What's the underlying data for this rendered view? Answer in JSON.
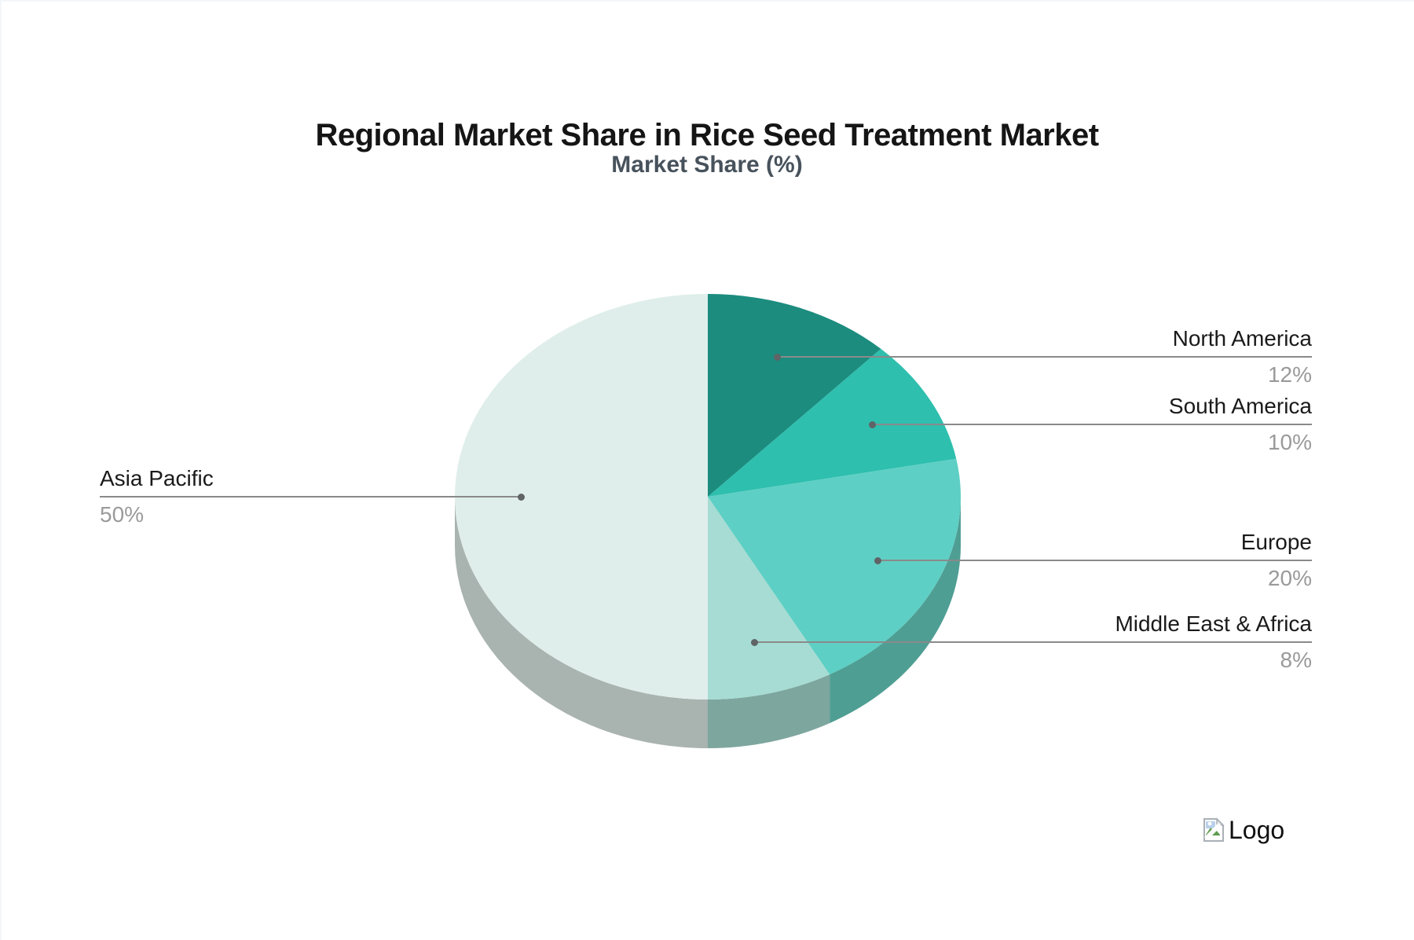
{
  "page": {
    "background": "#ffffff"
  },
  "header": {
    "title": "Regional Market Share in Rice Seed Treatment Market",
    "subtitle": "Market Share (%)"
  },
  "chart_data": {
    "type": "pie",
    "style": "3d-extruded",
    "title": "Regional Market Share in Rice Seed Treatment Market",
    "subtitle": "Market Share (%)",
    "unit": "%",
    "direction": "clockwise",
    "start_angle_deg": 0,
    "legend_position": "none",
    "label_style": "callout-lines-with-dots",
    "categories": [
      "North America",
      "South America",
      "Europe",
      "Middle East & Africa",
      "Asia Pacific"
    ],
    "values": [
      12,
      10,
      20,
      8,
      50
    ],
    "value_labels": [
      "12%",
      "10%",
      "20%",
      "8%",
      "50%"
    ]
  },
  "colors": {
    "slice_top": [
      "#1c8c7f",
      "#2ebfae",
      "#5ecfc4",
      "#a6dcd3",
      "#dfeeea"
    ],
    "slice_side": [
      "#16776c",
      "#28a295",
      "#4f9e94",
      "#7da69e",
      "#a9b3b0"
    ],
    "leader_line": "#8a8a8a",
    "leader_dot": "#606467",
    "label_text": "#1a1a1a",
    "percent_text": "#9a9a9a",
    "title_text": "#151515",
    "subtitle_text": "#47525c",
    "background": "#ffffff"
  },
  "logo": {
    "text": "Logo",
    "icon": "broken-image-icon"
  }
}
